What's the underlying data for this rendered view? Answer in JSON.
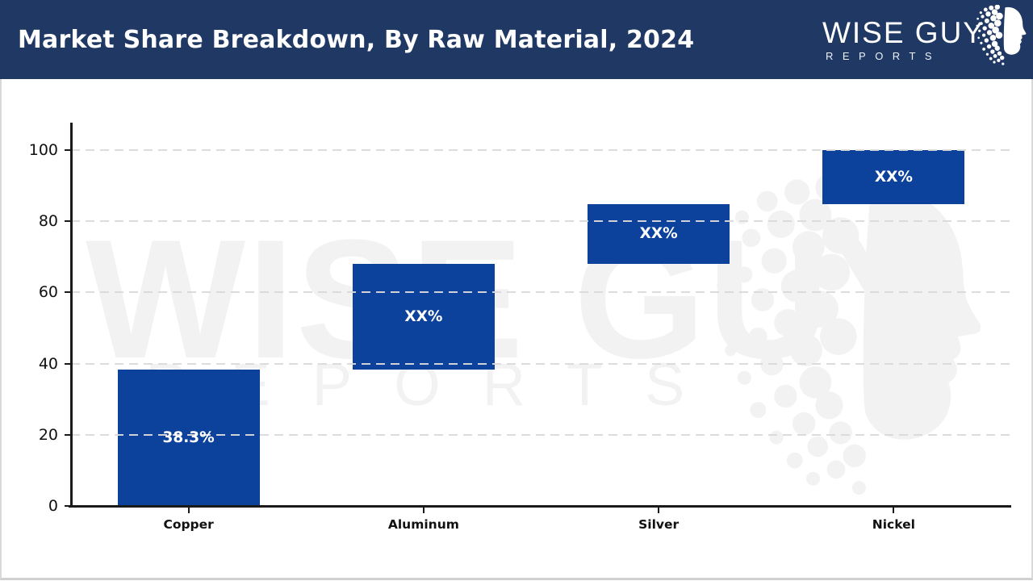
{
  "header": {
    "title": "Market Share Breakdown, By Raw Material, 2024",
    "logo": {
      "line1": "WISE GUY",
      "line2": "REPORTS"
    }
  },
  "watermark": {
    "line1": "WISE GUY",
    "line2": "REPORTS"
  },
  "colors": {
    "header_bg": "#1F3864",
    "bar": "#0C419C",
    "bar_label": "#FFFFFF",
    "gridline": "#DADADA",
    "axis": "#1A1A1A",
    "watermark": "#F2F2F2",
    "panel_border": "#D8D8D8"
  },
  "chart_data": {
    "type": "bar",
    "subtype": "waterfall-floating-bars",
    "title": "Market Share Breakdown, By Raw Material, 2024",
    "categories": [
      "Copper",
      "Aluminum",
      "Silver",
      "Nickel"
    ],
    "segments": [
      {
        "category": "Copper",
        "start": 0,
        "end": 38.3,
        "label": "38.3%"
      },
      {
        "category": "Aluminum",
        "start": 38.3,
        "end": 68.0,
        "label": "XX%"
      },
      {
        "category": "Silver",
        "start": 68.0,
        "end": 84.8,
        "label": "XX%"
      },
      {
        "category": "Nickel",
        "start": 84.8,
        "end": 100,
        "label": "XX%"
      }
    ],
    "xlabel": "",
    "ylabel": "",
    "ylim": [
      0,
      107
    ],
    "yticks": [
      0,
      20,
      40,
      60,
      80,
      100
    ],
    "grid": "horizontal-dashed, drawn over bars",
    "legend": "none"
  }
}
